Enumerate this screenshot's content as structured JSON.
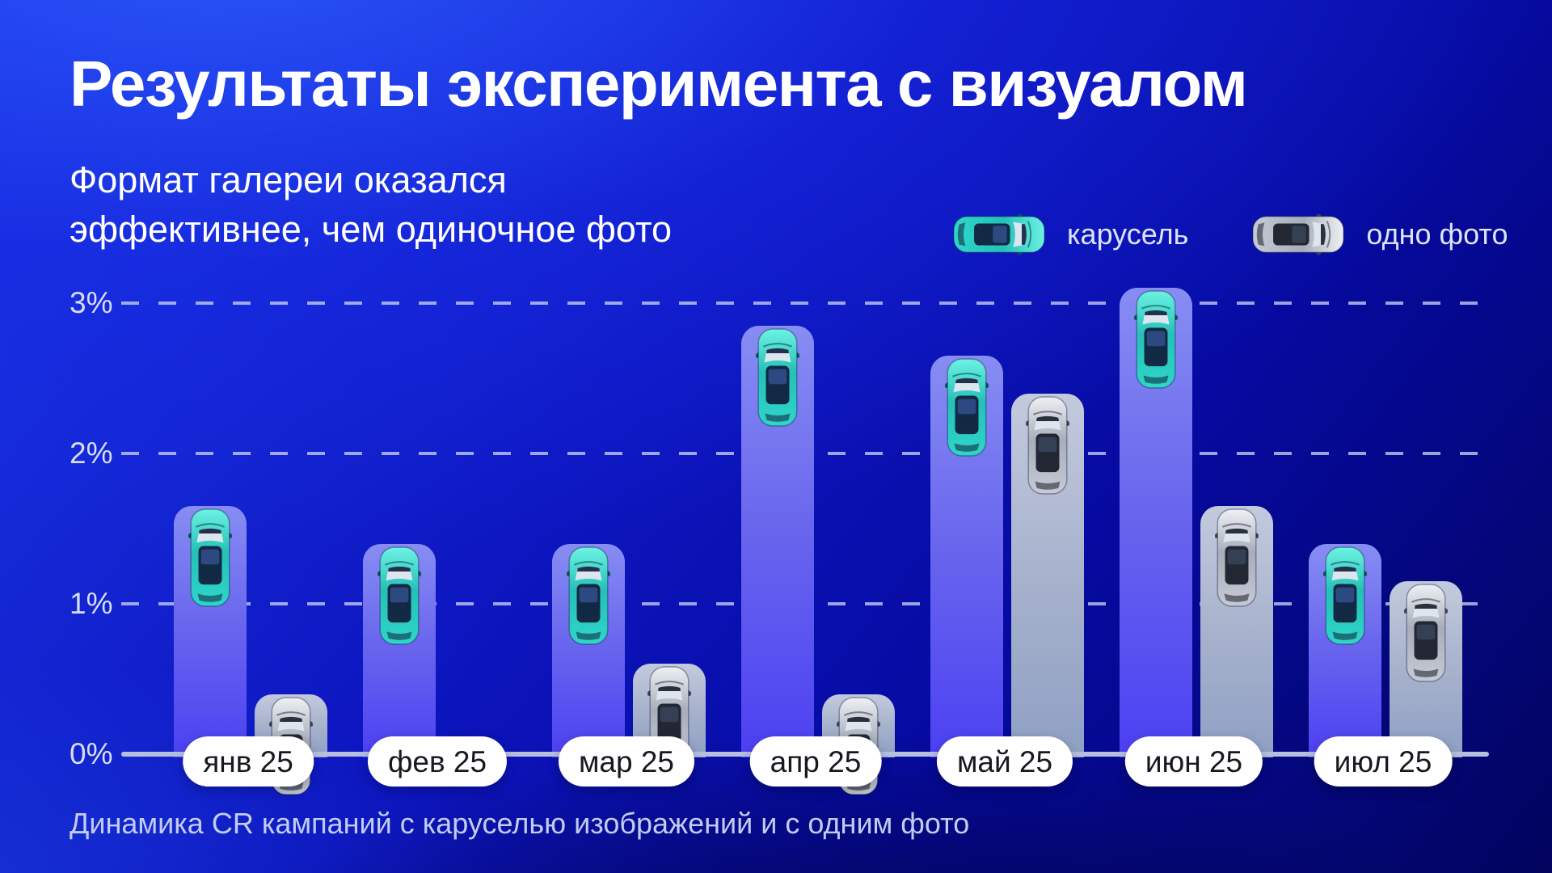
{
  "slide": {
    "title": "Результаты эксперимента с визуалом",
    "subtitle_lines": [
      "Формат галереи оказался",
      "эффективнее, чем одиночное фото"
    ],
    "caption": "Динамика CR кампаний с каруселью изображений и с одним фото"
  },
  "legend": {
    "items": [
      {
        "label": "карусель",
        "icon": "teal-car-top-view-icon"
      },
      {
        "label": "одно фото",
        "icon": "gray-car-top-view-icon"
      }
    ]
  },
  "colors": {
    "background_top": "#1d43ee",
    "background_bottom": "#03045e",
    "carousel_bar_top": "#878df3",
    "carousel_bar_bottom": "#4c40f2",
    "photo_bar_top": "#c3cadd",
    "photo_bar_bottom": "#8fa0c4",
    "carousel_car": "#2fd6c9",
    "photo_car": "#a7adba",
    "axis_line": "#b6c0dd",
    "gridline": "#d5ddf8",
    "pill_bg": "#ffffff",
    "pill_text": "#17191f",
    "title_text": "#ffffff",
    "muted_text": "#c2ccf3"
  },
  "chart_data": {
    "type": "bar",
    "title": "Динамика CR кампаний с каруселью изображений и с одним фото",
    "categories": [
      "янв 25",
      "фев 25",
      "мар 25",
      "апр 25",
      "май 25",
      "июн 25",
      "июл 25"
    ],
    "series": [
      {
        "name": "карусель",
        "key": "carousel",
        "values": [
          1.65,
          1.4,
          1.4,
          2.85,
          2.65,
          3.1,
          1.4
        ]
      },
      {
        "name": "одно фото",
        "key": "photo",
        "values": [
          0.4,
          0,
          0.6,
          0.4,
          2.4,
          1.65,
          1.15
        ]
      }
    ],
    "xlabel": "",
    "ylabel": "",
    "y_ticks": [
      {
        "value": 0,
        "label": "0%"
      },
      {
        "value": 1,
        "label": "1%"
      },
      {
        "value": 2,
        "label": "2%"
      },
      {
        "value": 3,
        "label": "3%"
      }
    ],
    "ylim": [
      0,
      3.2
    ],
    "grid": "horizontal-dashed",
    "legend_position": "top-right",
    "bar_decoration": "top-view car icon on each bar (teal = карусель, gray = одно фото)"
  }
}
